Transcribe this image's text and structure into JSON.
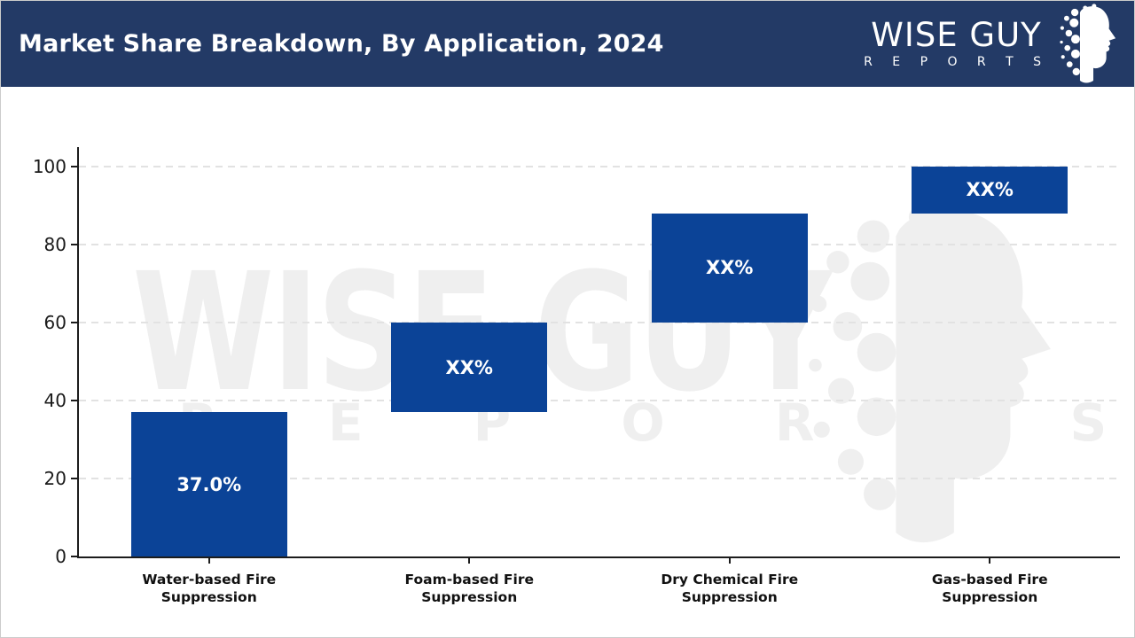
{
  "header": {
    "title": "Market Share Breakdown, By Application, 2024",
    "logo": {
      "wordmark": "WISE GUY",
      "subtext": "R E P O R T S"
    }
  },
  "watermark": {
    "wordmark": "WISE GUY",
    "subtext": "R E P O R T S"
  },
  "chart_data": {
    "type": "bar",
    "subtype": "floating-segment-percentage",
    "title": "Market Share Breakdown, By Application, 2024",
    "categories": [
      "Water-based Fire Suppression",
      "Foam-based Fire Suppression",
      "Dry Chemical Fire Suppression",
      "Gas-based Fire Suppression"
    ],
    "segments": [
      {
        "category": "Water-based Fire Suppression",
        "start": 0,
        "end": 37,
        "label": "37.0%"
      },
      {
        "category": "Foam-based Fire Suppression",
        "start": 37,
        "end": 60,
        "label": "XX%"
      },
      {
        "category": "Dry Chemical Fire Suppression",
        "start": 60,
        "end": 88,
        "label": "XX%"
      },
      {
        "category": "Gas-based Fire Suppression",
        "start": 88,
        "end": 100,
        "label": "XX%"
      }
    ],
    "yticks": [
      0,
      20,
      40,
      60,
      80,
      100
    ],
    "ylim": [
      0,
      105
    ],
    "grid": "dashed-horizontal",
    "legend": "none",
    "xlabel": "",
    "ylabel": ""
  },
  "colors": {
    "header_bg": "#233a66",
    "bar": "#0b4397",
    "grid": "#e2e2e2",
    "axis": "#1c1c1c",
    "tick_text": "#1a1a1a",
    "bar_label_text": "#ffffff",
    "watermark": "#efefef"
  }
}
